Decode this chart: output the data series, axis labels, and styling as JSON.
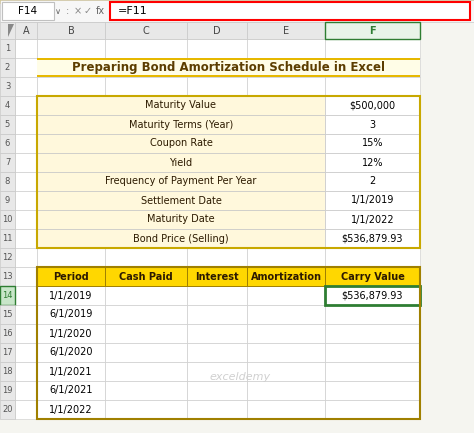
{
  "title": "Preparing Bond Amortization Schedule in Excel",
  "formula_bar_cell": "F14",
  "formula_bar_formula": "=F11",
  "col_labels": [
    "A",
    "B",
    "C",
    "D",
    "E",
    "F"
  ],
  "info_labels": [
    "Maturity Value",
    "Maturity Terms (Year)",
    "Coupon Rate",
    "Yield",
    "Frequency of Payment Per Year",
    "Settlement Date",
    "Maturity Date",
    "Bond Price (Selling)"
  ],
  "info_values": [
    "$500,000",
    "3",
    "15%",
    "12%",
    "2",
    "1/1/2019",
    "1/1/2022",
    "$536,879.93"
  ],
  "schedule_headers": [
    "Period",
    "Cash Paid",
    "Interest",
    "Amortization",
    "Carry Value"
  ],
  "schedule_periods": [
    "1/1/2019",
    "6/1/2019",
    "1/1/2020",
    "6/1/2020",
    "1/1/2021",
    "6/1/2021",
    "1/1/2022"
  ],
  "carry_value_row0": "$536,879.93",
  "outer_bg": "#F5F5F0",
  "cell_bg": "#FFFFFF",
  "title_bg": "#FFFDE7",
  "title_color": "#5C3D00",
  "title_border_top": "#E6B800",
  "title_border_bottom": "#E6B800",
  "info_label_bg": "#FFF8DC",
  "info_value_bg": "#FFFFFF",
  "table_header_bg": "#FFD700",
  "table_header_color": "#2C1A00",
  "grid_color": "#C8C8C8",
  "col_header_bg": "#E8E8E8",
  "row_num_bg": "#E8E8E8",
  "formula_border": "#FF0000",
  "selected_cell_border": "#2E7D32",
  "selected_col_bg": "#E8F4E8",
  "outer_border_color": "#C8A800",
  "sched_border_color": "#A08000",
  "row14_selected_bg": "#DDEEDD"
}
